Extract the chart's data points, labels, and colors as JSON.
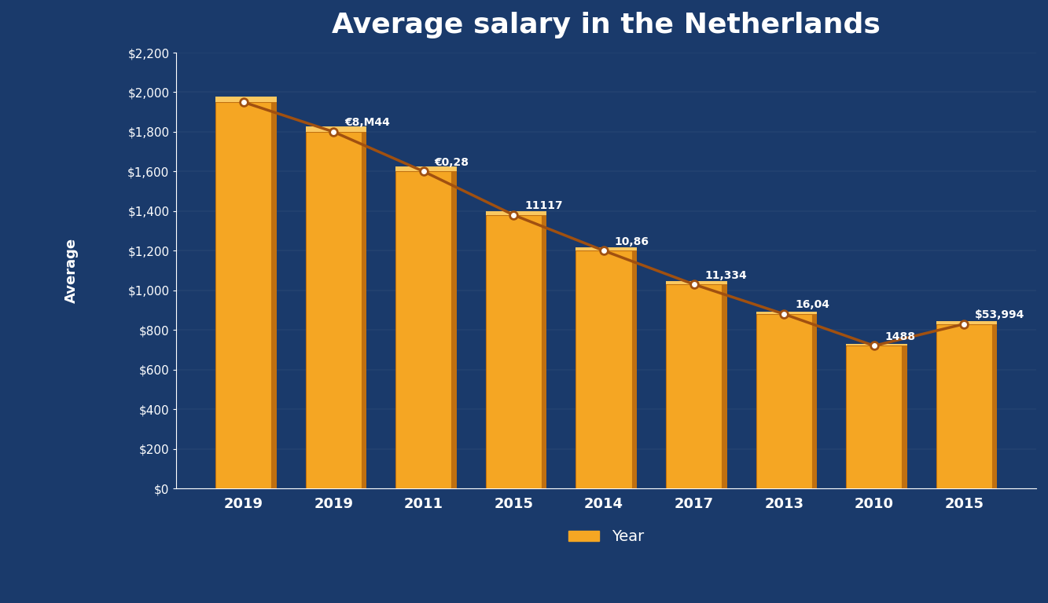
{
  "title": "Average salary in the Netherlands",
  "categories": [
    "2019",
    "2019",
    "2011",
    "2015",
    "2014",
    "2017",
    "2013",
    "2010",
    "2015"
  ],
  "values": [
    1950,
    1800,
    1600,
    1380,
    1200,
    1030,
    880,
    720,
    830
  ],
  "point_labels": [
    "",
    "€8,M44",
    "€0,28",
    "11117",
    "10,86",
    "11,334",
    "16,04",
    "1488",
    "$53,994"
  ],
  "bar_color_main": "#F5A623",
  "bar_color_side": "#C07010",
  "bar_color_top": "#FAC860",
  "line_color": "#A05010",
  "background_color": "#1a3a6b",
  "text_color": "#ffffff",
  "ylabel": "Average",
  "legend_label": "Year",
  "ylim_max": 2200,
  "ytick_step": 200,
  "title_fontsize": 26,
  "xtick_fontsize": 13,
  "ytick_fontsize": 11,
  "legend_fontsize": 14,
  "ylabel_fontsize": 13,
  "bar_width": 0.62
}
